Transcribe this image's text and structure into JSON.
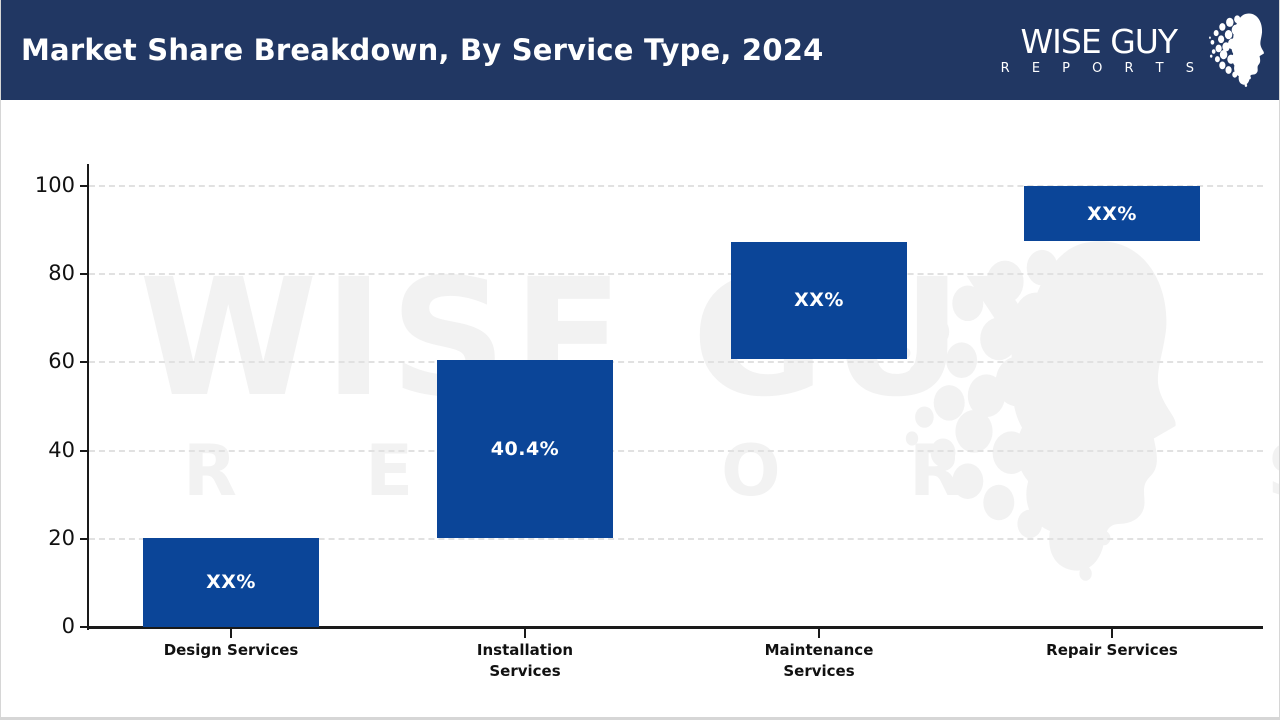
{
  "header": {
    "title": "Market Share Breakdown, By Service Type, 2024",
    "background_color": "#213763",
    "logo": {
      "name_line": "WISE GUY",
      "sub_line": "R E P O R T S"
    }
  },
  "watermark": {
    "name_line": "WISE GUY",
    "sub_line": "R E P O R T S",
    "color": "#f2f2f2"
  },
  "chart_data": {
    "type": "bar",
    "subtype": "floating-waterfall",
    "title": "Market Share Breakdown, By Service Type, 2024",
    "categories": [
      "Design Services",
      "Installation Services",
      "Maintenance Services",
      "Repair Services"
    ],
    "series": [
      {
        "name": "Market share (%)",
        "bars": [
          {
            "category": "Design Services",
            "start": 0,
            "end": 20.2,
            "label": "XX%"
          },
          {
            "category": "Installation Services",
            "start": 20.2,
            "end": 60.6,
            "label": "40.4%"
          },
          {
            "category": "Maintenance Services",
            "start": 60.7,
            "end": 87.4,
            "label": "XX%"
          },
          {
            "category": "Repair Services",
            "start": 87.5,
            "end": 100,
            "label": "XX%"
          }
        ]
      }
    ],
    "xlabel": "",
    "ylabel": "",
    "ylim": [
      0,
      100
    ],
    "yticks": [
      0,
      20,
      40,
      60,
      80,
      100
    ],
    "grid": "horizontal-dashed",
    "legend": "none",
    "colors": {
      "bar": "#0b4598",
      "bar_label": "#ffffff",
      "grid": "#e1e1e1",
      "axis": "#1a1a1a",
      "tick_label": "#111111"
    }
  }
}
